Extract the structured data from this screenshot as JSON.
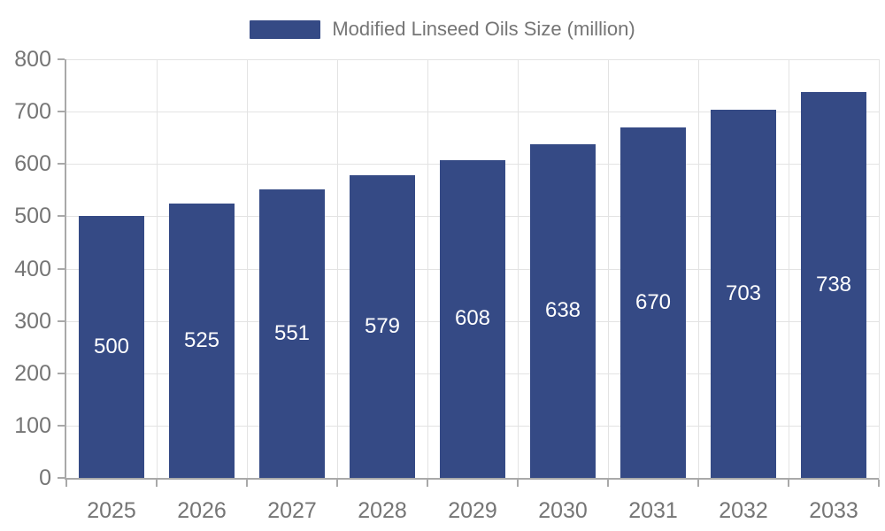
{
  "chart_data": {
    "type": "bar",
    "title": "",
    "legend_label": "Modified Linseed Oils Size (million)",
    "categories": [
      "2025",
      "2026",
      "2027",
      "2028",
      "2029",
      "2030",
      "2031",
      "2032",
      "2033"
    ],
    "values": [
      500,
      525,
      551,
      579,
      608,
      638,
      670,
      703,
      738
    ],
    "series": [
      {
        "name": "Modified Linseed Oils Size (million)",
        "values": [
          500,
          525,
          551,
          579,
          608,
          638,
          670,
          703,
          738
        ]
      }
    ],
    "xlabel": "",
    "ylabel": "",
    "ylim": [
      0,
      800
    ],
    "ytick_step": 100,
    "yticks": [
      0,
      100,
      200,
      300,
      400,
      500,
      600,
      700,
      800
    ],
    "grid": "on",
    "legend_position": "top-center",
    "bar_labels_inside": true
  },
  "colors": {
    "bar": "#354a85",
    "bar_label_text": "#ffffff",
    "axis_text": "#757575",
    "legend_text": "#757575",
    "gridline": "#e3e3e3",
    "spine": "#a9a9a9",
    "right_spine": "#e3e3e3"
  }
}
